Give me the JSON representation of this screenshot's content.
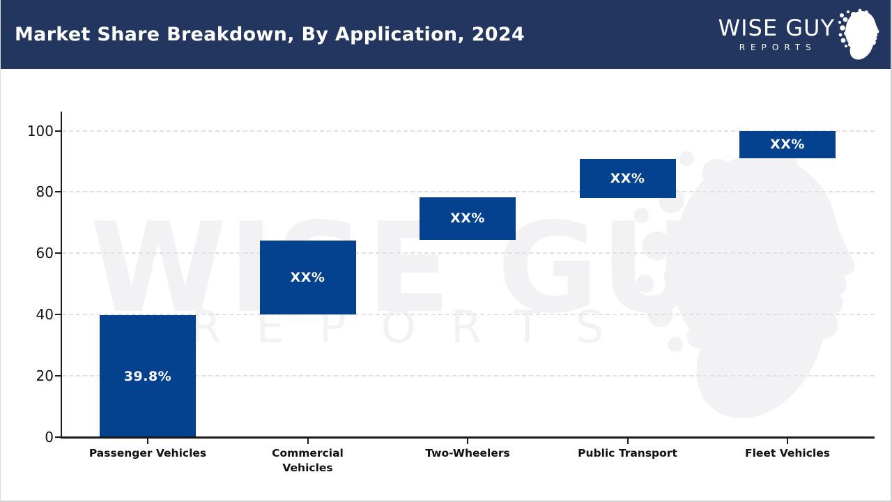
{
  "header": {
    "title": "Market Share Breakdown, By Application, 2024",
    "logo": {
      "line1": "WISE GUY",
      "line2": "REPORTS"
    }
  },
  "watermark": {
    "line1": "WISE GUY",
    "line2": "REPORTS"
  },
  "chart_data": {
    "type": "bar",
    "variant": "floating-segment-waterfall",
    "title": "Market Share Breakdown, By Application, 2024",
    "categories": [
      "Passenger Vehicles",
      "Commercial\nVehicles",
      "Two-Wheelers",
      "Public Transport",
      "Fleet Vehicles"
    ],
    "segments": [
      {
        "category": "Passenger Vehicles",
        "from": 0,
        "to": 39.8,
        "value": 39.8,
        "label": "39.8%"
      },
      {
        "category": "Commercial Vehicles",
        "from": 40,
        "to": 64.2,
        "value": 24.2,
        "label": "XX%"
      },
      {
        "category": "Two-Wheelers",
        "from": 64.5,
        "to": 78.2,
        "value": 13.7,
        "label": "XX%"
      },
      {
        "category": "Public Transport",
        "from": 78,
        "to": 90.8,
        "value": 12.8,
        "label": "XX%"
      },
      {
        "category": "Fleet Vehicles",
        "from": 91,
        "to": 100,
        "value": 9.0,
        "label": "XX%"
      }
    ],
    "ylim": [
      0,
      105
    ],
    "yticks": [
      0,
      20,
      40,
      60,
      80,
      100
    ],
    "xlabel": "",
    "ylabel": "",
    "grid": "horizontal-dashed",
    "legend": "none",
    "bar_color": "#04418f",
    "bar_label_color": "#ffffff",
    "header_color": "#22365f"
  }
}
